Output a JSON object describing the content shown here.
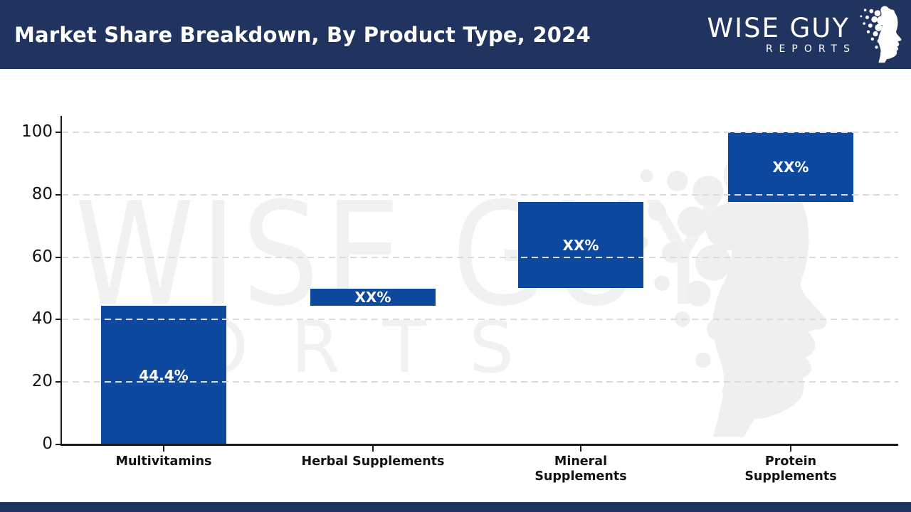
{
  "header": {
    "title": "Market Share Breakdown, By Product Type, 2024",
    "logo_line1": "WISE GUY",
    "logo_line2": "REPORTS"
  },
  "watermark": {
    "line1": "WISE GUY",
    "line2": "P O R T S"
  },
  "chart_data": {
    "type": "bar",
    "subtype": "waterfall",
    "title": "Market Share Breakdown, By Product Type, 2024",
    "categories": [
      "Multivitamins",
      "Herbal Supplements",
      "Mineral Supplements",
      "Protein Supplements"
    ],
    "category_lines": [
      [
        "Multivitamins"
      ],
      [
        "Herbal Supplements"
      ],
      [
        "Mineral",
        "Supplements"
      ],
      [
        "Protein",
        "Supplements"
      ]
    ],
    "segments": [
      {
        "category": "Multivitamins",
        "start": 0,
        "end": 44.4,
        "label": "44.4%"
      },
      {
        "category": "Herbal Supplements",
        "start": 44.4,
        "end": 50,
        "label": "XX%"
      },
      {
        "category": "Mineral Supplements",
        "start": 50,
        "end": 77.7,
        "label": "XX%"
      },
      {
        "category": "Protein Supplements",
        "start": 77.7,
        "end": 100,
        "label": "XX%"
      }
    ],
    "xlabel": "",
    "ylabel": "",
    "ylim": [
      0,
      100
    ],
    "yticks": [
      0,
      20,
      40,
      60,
      80,
      100
    ],
    "grid": "horizontal-dashed",
    "legend": "none",
    "bar_color": "#0E49A0",
    "value_label_color": "#FFFFFF"
  },
  "colors": {
    "header_bg": "#21345F",
    "footer_bg": "#21345F",
    "bar": "#0E49A0",
    "gridline": "#DBDBDB",
    "axis": "#1A1A1A",
    "watermark": "#F1F1F1"
  }
}
